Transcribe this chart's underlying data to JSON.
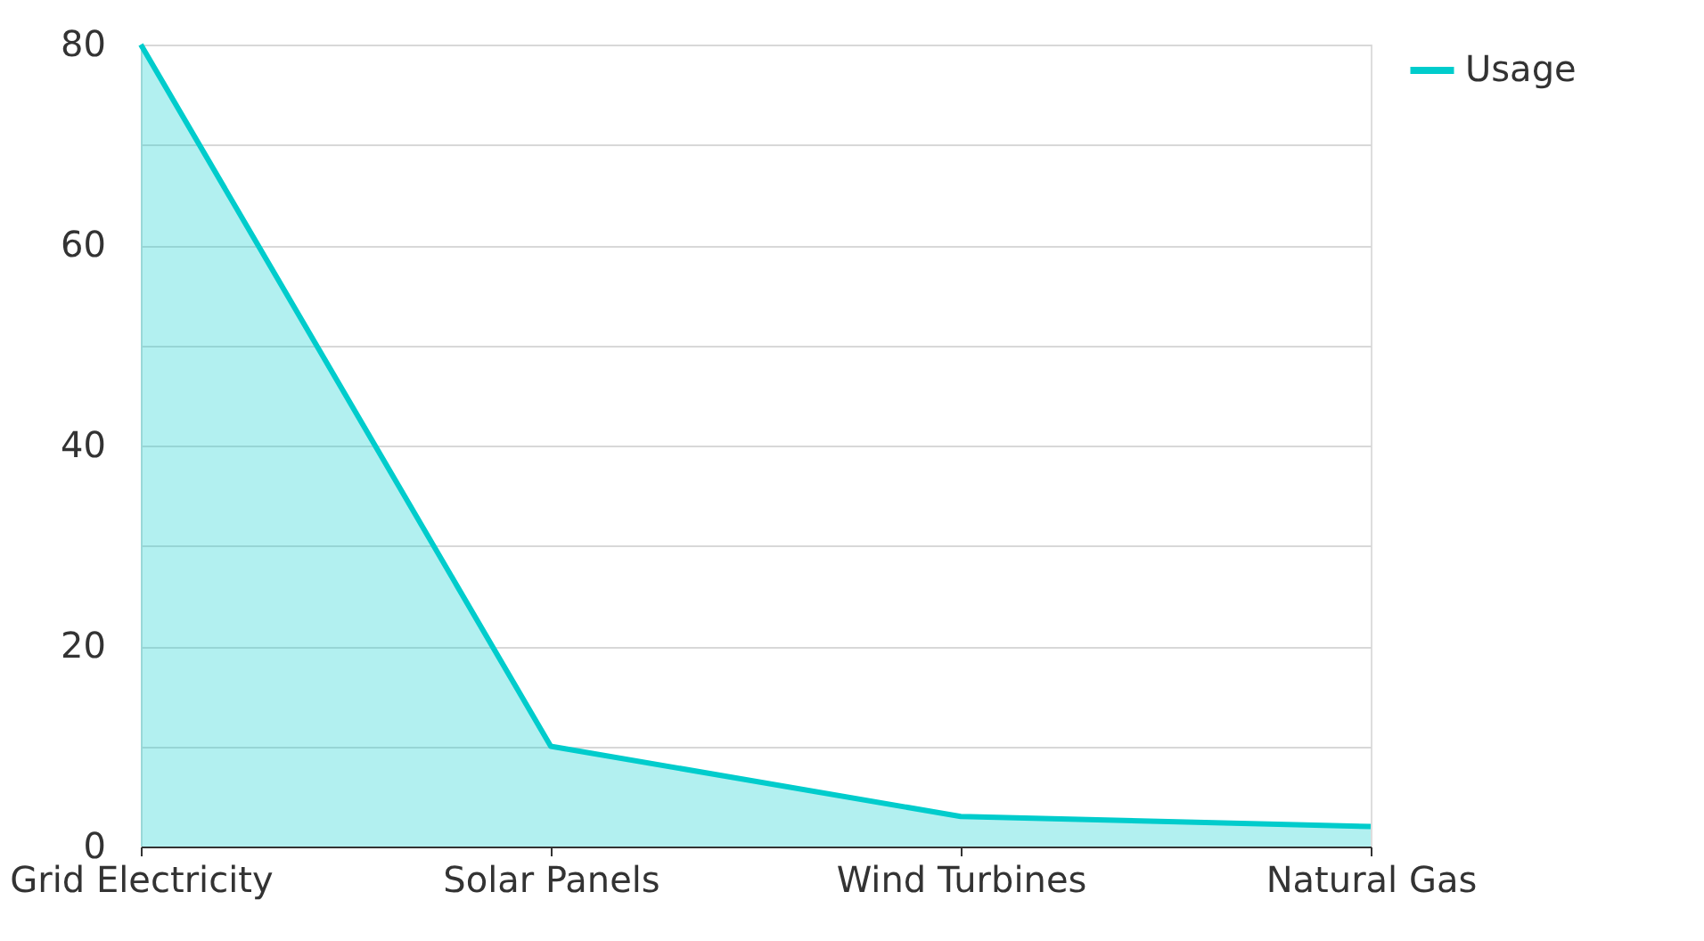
{
  "chart_data": {
    "type": "area",
    "categories": [
      "Grid Electricity",
      "Solar Panels",
      "Wind Turbines",
      "Natural Gas"
    ],
    "series": [
      {
        "name": "Usage",
        "color": "#00cccc",
        "values": [
          80,
          10,
          3,
          2
        ]
      }
    ],
    "ylim": [
      0,
      80
    ],
    "yticks": [
      0,
      {
        "value": 10,
        "label": null
      },
      20,
      {
        "value": 30,
        "label": null
      },
      40,
      {
        "value": 50,
        "label": null
      },
      60,
      {
        "value": 70,
        "label": null
      },
      80
    ],
    "grid": "y",
    "legend": "top right"
  }
}
